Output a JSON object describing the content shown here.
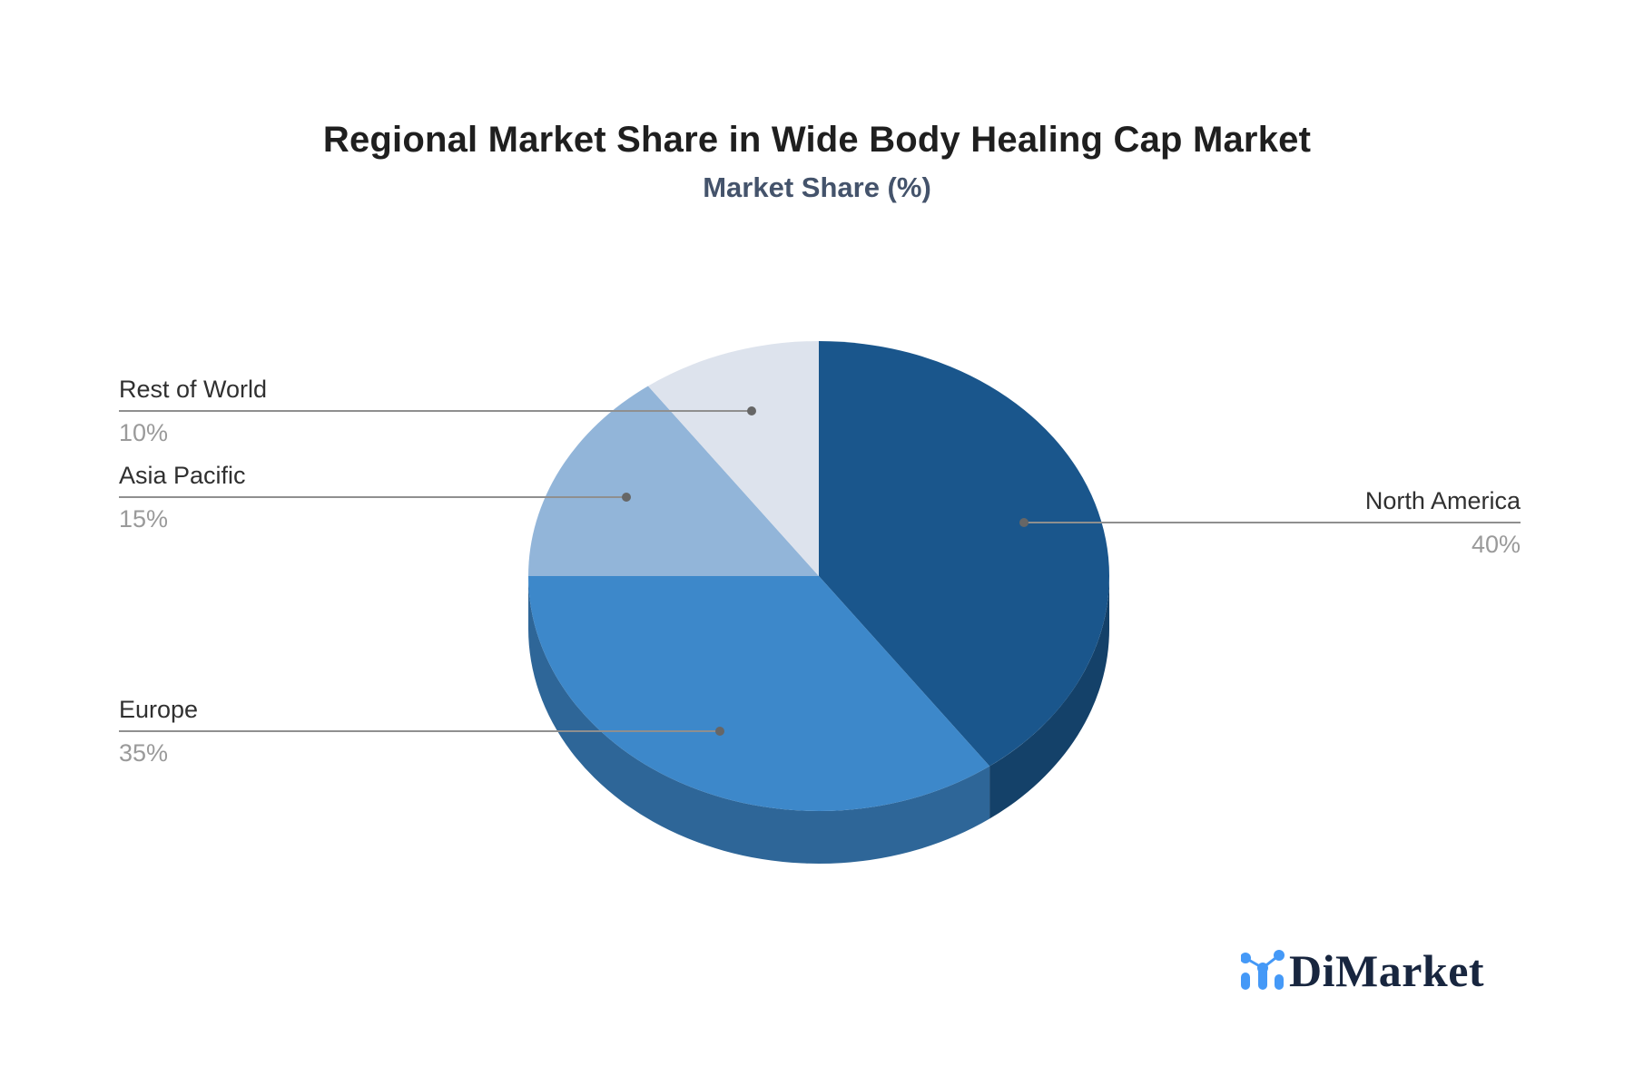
{
  "page": {
    "background": "#ffffff"
  },
  "chart_data": {
    "type": "pie",
    "title": "Regional Market Share in Wide Body Healing Cap Market",
    "subtitle": "Market Share (%)",
    "unit": "%",
    "effect": "3d",
    "start_angle_deg": 0,
    "direction": "clockwise",
    "legend_position": "none",
    "labels_style": "callout-lines",
    "slices": [
      {
        "label": "North America",
        "value": 40,
        "display_value": "40%",
        "color": "#1a568c",
        "callout_side": "right"
      },
      {
        "label": "Europe",
        "value": 35,
        "display_value": "35%",
        "color": "#3d88ca",
        "callout_side": "left"
      },
      {
        "label": "Asia Pacific",
        "value": 15,
        "display_value": "15%",
        "color": "#92b5d9",
        "callout_side": "left"
      },
      {
        "label": "Rest of World",
        "value": 10,
        "display_value": "10%",
        "color": "#dde3ed",
        "callout_side": "left"
      }
    ]
  },
  "branding": {
    "logo_text": "DiMarket",
    "logo_icon": "bar-chart-with-trend-dots-icon",
    "logo_text_color": "#18263f",
    "logo_icon_color": "#4599f7"
  },
  "colors": {
    "title_text": "#1f1f1f",
    "subtitle_text": "#44536b",
    "label_text": "#303030",
    "value_text": "#9a9a9a",
    "leader_line": "#8f8f8f",
    "leader_dot": "#666666"
  }
}
